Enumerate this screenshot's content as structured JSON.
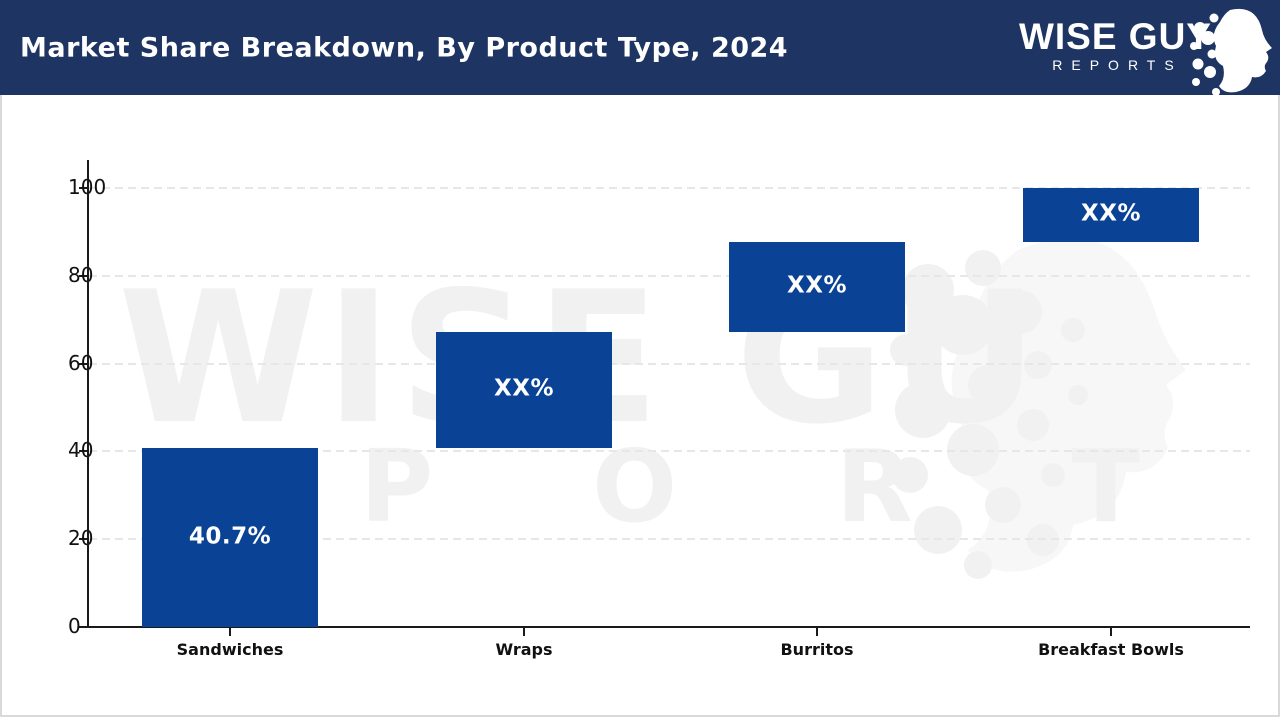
{
  "header": {
    "title": "Market Share Breakdown, By Product Type, 2024",
    "bg_color": "#1e3563",
    "logo": {
      "line1": "WISE GUY",
      "line2": "REPORTS",
      "head_icon": "dotted-profile-head-icon"
    }
  },
  "watermark": {
    "line1": "WISE GU",
    "line2": "P O R T S",
    "color": "#f1f1f1"
  },
  "chart_data": {
    "type": "bar",
    "subtype": "waterfall",
    "title": "Market Share Breakdown, By Product Type, 2024",
    "categories": [
      "Sandwiches",
      "Wraps",
      "Burritos",
      "Breakfast Bowls"
    ],
    "series": [
      {
        "name": "Market Share %",
        "segments": [
          [
            0,
            40.7
          ],
          [
            40.7,
            67.2
          ],
          [
            67.2,
            87.7
          ],
          [
            87.7,
            100
          ]
        ]
      }
    ],
    "bar_labels": [
      "40.7%",
      "XX%",
      "XX%",
      "XX%"
    ],
    "xlabel": "",
    "ylabel": "",
    "ylim": [
      0,
      100
    ],
    "yticks": [
      0,
      20,
      40,
      60,
      80,
      100
    ],
    "grid": "horizontal-dashed",
    "legend": "none",
    "bar_color": "#0a4296",
    "bar_label_color": "#ffffff",
    "gridline_color": "#e7e7e7"
  }
}
